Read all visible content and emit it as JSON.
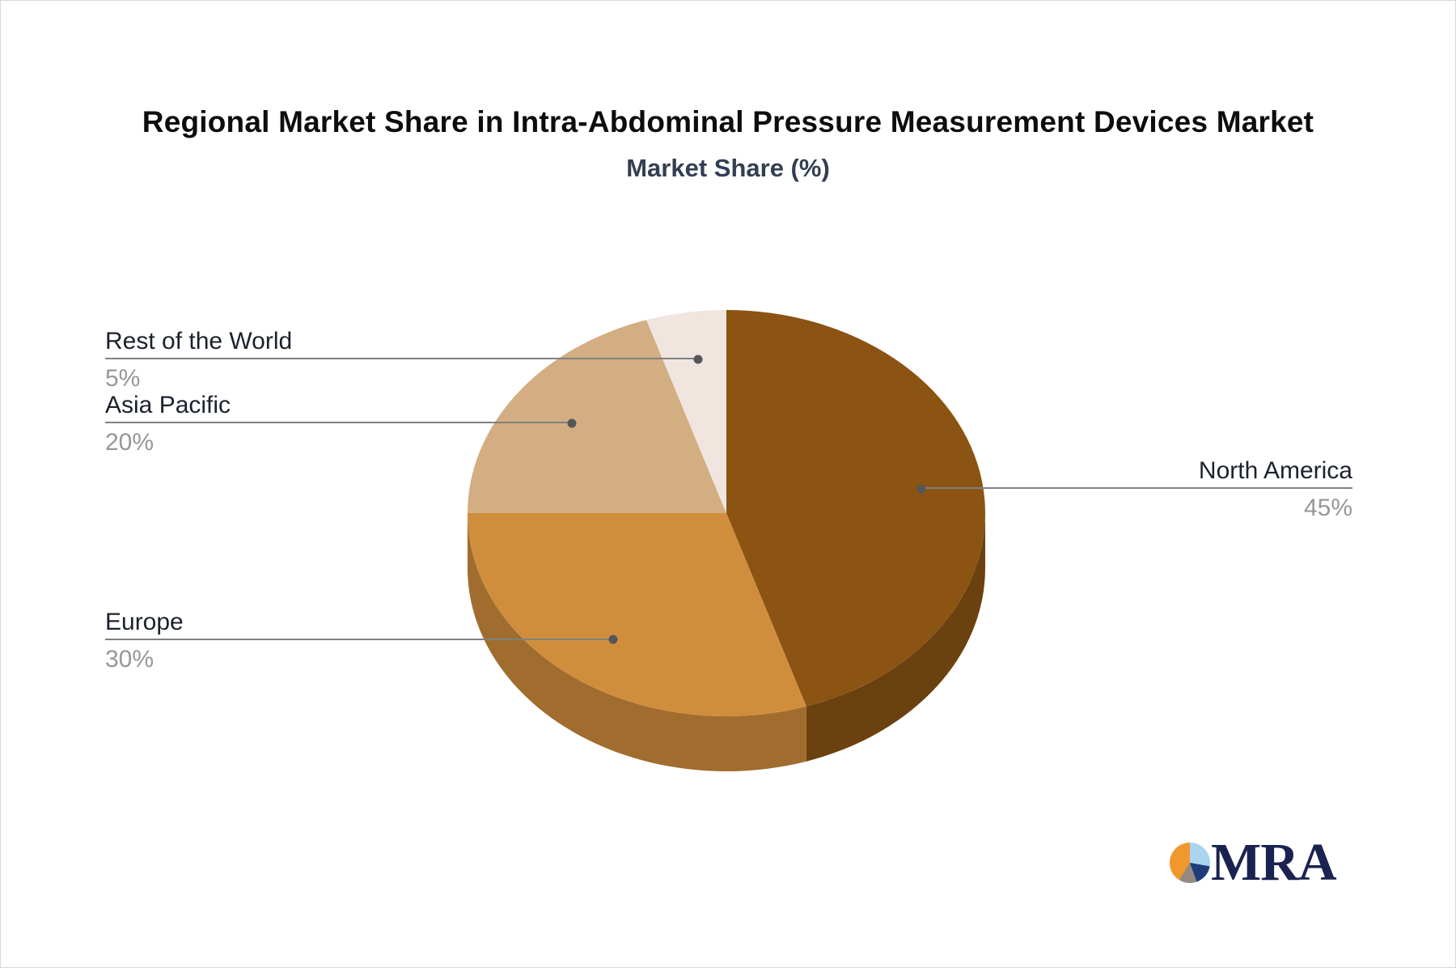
{
  "page": {
    "title": "Regional Market Share in Intra-Abdominal Pressure Measurement Devices Market",
    "subtitle": "Market Share (%)"
  },
  "chart_data": {
    "type": "pie",
    "title": "Regional Market Share in Intra-Abdominal Pressure Measurement Devices Market",
    "subtitle": "Market Share (%)",
    "unit": "%",
    "labels": [
      "North America",
      "Europe",
      "Asia Pacific",
      "Rest of the World"
    ],
    "values": [
      45,
      30,
      20,
      5
    ],
    "colors": [
      "#8B5413",
      "#D08E3D",
      "#D3AE82",
      "#F0E6DF"
    ],
    "style_3d": true,
    "start_angle_deg": 0,
    "direction": "clockwise",
    "legend_position": "callout-labels"
  },
  "callouts": [
    {
      "label": "Rest of the World",
      "value": "5%"
    },
    {
      "label": "Asia Pacific",
      "value": "20%"
    },
    {
      "label": "Europe",
      "value": "30%"
    },
    {
      "label": "North America",
      "value": "45%"
    }
  ],
  "logo": {
    "text": "MRA"
  },
  "colors": {
    "leader_line": "#808080",
    "leader_dot": "#55565a",
    "label_text": "#1b212d",
    "value_text": "#97979b",
    "title_text": "#0d0d0d",
    "subtitle_text": "#343e52",
    "logo_navy": "#1a2350",
    "logo_orange": "#F0982E",
    "logo_lightblue": "#AAD4EF",
    "logo_gray": "#948A80"
  }
}
